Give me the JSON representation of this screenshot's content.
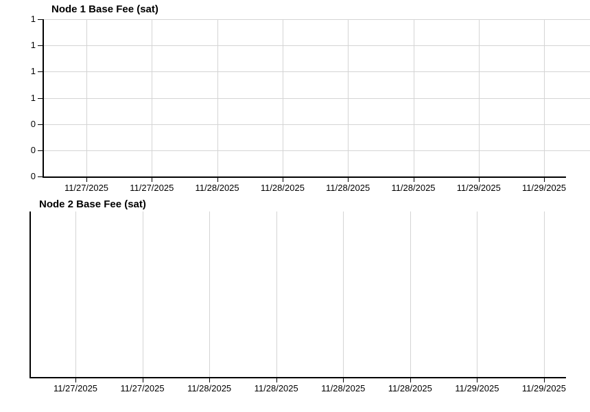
{
  "colors": {
    "background": "#ffffff",
    "axis": "#000000",
    "grid": "#d4d4d4",
    "text": "#000000"
  },
  "chart_data": [
    {
      "type": "line",
      "title": "Node 1 Base Fee (sat)",
      "xlabel": "",
      "ylabel": "",
      "x_tick_labels": [
        "11/27/2025",
        "11/27/2025",
        "11/28/2025",
        "11/28/2025",
        "11/28/2025",
        "11/28/2025",
        "11/29/2025",
        "11/29/2025"
      ],
      "y_tick_labels": [
        "1",
        "1",
        "1",
        "1",
        "0",
        "0",
        "0"
      ],
      "series": [],
      "grid": {
        "horizontal": true,
        "vertical": true
      },
      "legend": "none"
    },
    {
      "type": "line",
      "title": "Node 2 Base Fee (sat)",
      "xlabel": "",
      "ylabel": "",
      "x_tick_labels": [
        "11/27/2025",
        "11/27/2025",
        "11/28/2025",
        "11/28/2025",
        "11/28/2025",
        "11/28/2025",
        "11/29/2025",
        "11/29/2025"
      ],
      "y_tick_labels": [],
      "series": [],
      "grid": {
        "horizontal": false,
        "vertical": true
      },
      "legend": "none"
    }
  ]
}
